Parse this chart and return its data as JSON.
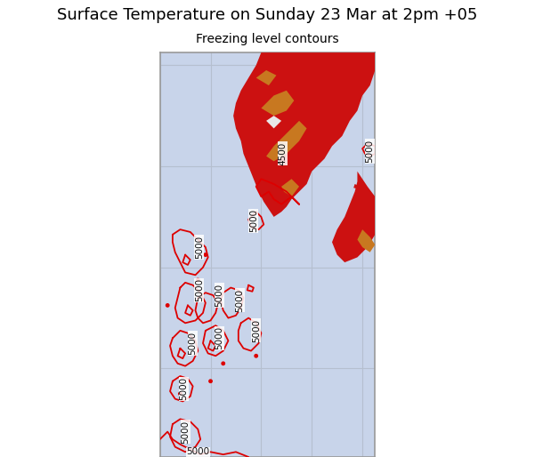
{
  "title": "Surface Temperature on Sunday 23 Mar at 2pm +05",
  "subtitle": "Freezing level contours",
  "title_fontsize": 13,
  "subtitle_fontsize": 10,
  "bg_color": "#ffffff",
  "map_bg_color": "#c8d4ea",
  "border_color": "#999999",
  "grid_color": "#b5bfcf",
  "contour_color": "#dd0000",
  "land_red": "#cc1111",
  "land_orange": "#c87820",
  "land_white_spot": "#e8e8e8",
  "fig_width": 6.01,
  "fig_height": 5.14,
  "dpi": 100,
  "lon_min": 72.0,
  "lon_max": 80.5,
  "lat_min": -1.5,
  "lat_max": 14.5
}
